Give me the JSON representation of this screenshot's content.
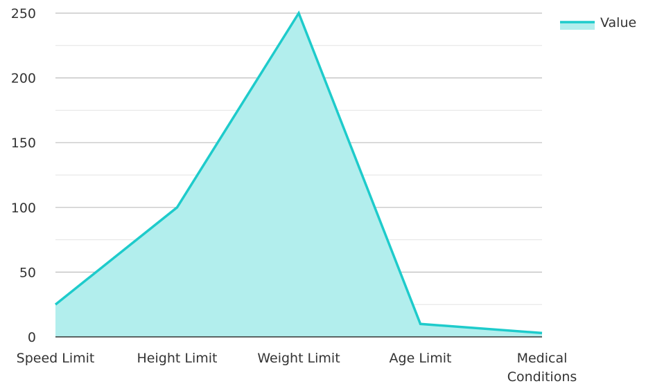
{
  "chart_data": {
    "type": "area",
    "categories": [
      "Speed Limit",
      "Height Limit",
      "Weight Limit",
      "Age Limit",
      "Medical\nConditions"
    ],
    "series": [
      {
        "name": "Value",
        "values": [
          25,
          100,
          250,
          10,
          3
        ]
      }
    ],
    "ylim": [
      0,
      250
    ],
    "yticks": [
      0,
      50,
      100,
      150,
      200,
      250
    ],
    "grid": true,
    "legend": "top-right",
    "colors": {
      "line": "#1ecbcb",
      "fill": "#b2eeed",
      "grid_major": "#bdbdbd",
      "grid_minor": "#e3e3e3",
      "axis": "#333333"
    }
  }
}
